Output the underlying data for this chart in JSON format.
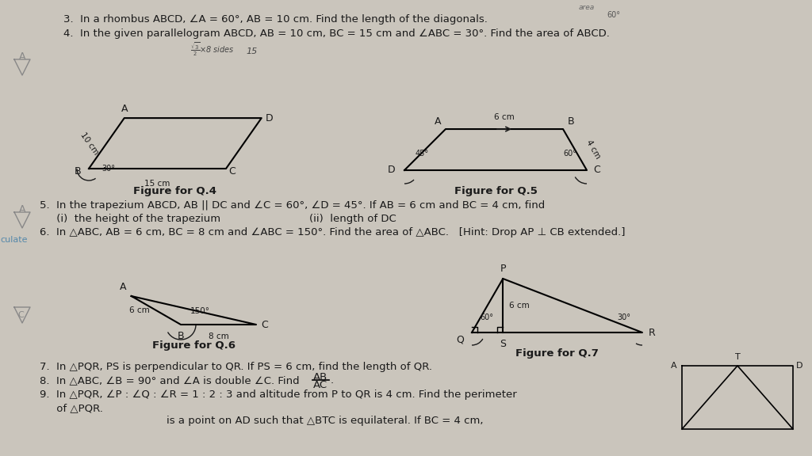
{
  "bg_color": "#cac5bc",
  "text_color": "#1a1a1a",
  "line3": "3.  In a rhombus ABCD, ∠A = 60°, AB = 10 cm. Find the length of the diagonals.",
  "line4": "4.  In the given parallelogram ABCD, AB = 10 cm, BC = 15 cm and ∠ABC = 30°. Find the area of ABCD.",
  "q5_text": "5.  In the trapezium ABCD, AB || DC and ∠C = 60°, ∠D = 45°. If AB = 6 cm and BC = 4 cm, find",
  "q5a": "     (i)  the height of the trapezium",
  "q5b": "(ii)  length of DC",
  "q6_text": "6.  In △ABC, AB = 6 cm, BC = 8 cm and ∠ABC = 150°. Find the area of △ABC.   [Hint: Drop AP ⊥ CB extended.]",
  "q7_text": "7.  In △PQR, PS is perpendicular to QR. If PS = 6 cm, find the length of QR.",
  "q8_text": "8.  In △ABC, ∠B = 90° and ∠A is double ∠C. Find",
  "q9_text": "9.  In △PQR, ∠P : ∠Q : ∠R = 1 : 2 : 3 and altitude from P to QR is 4 cm. Find the perimeter",
  "q9b_text": "     of △PQR.",
  "fig4_label": "Figure for Q.4",
  "fig5_label": "Figure for Q.5",
  "fig6_label": "Figure for Q.6",
  "fig7_label": "Figure for Q.7"
}
